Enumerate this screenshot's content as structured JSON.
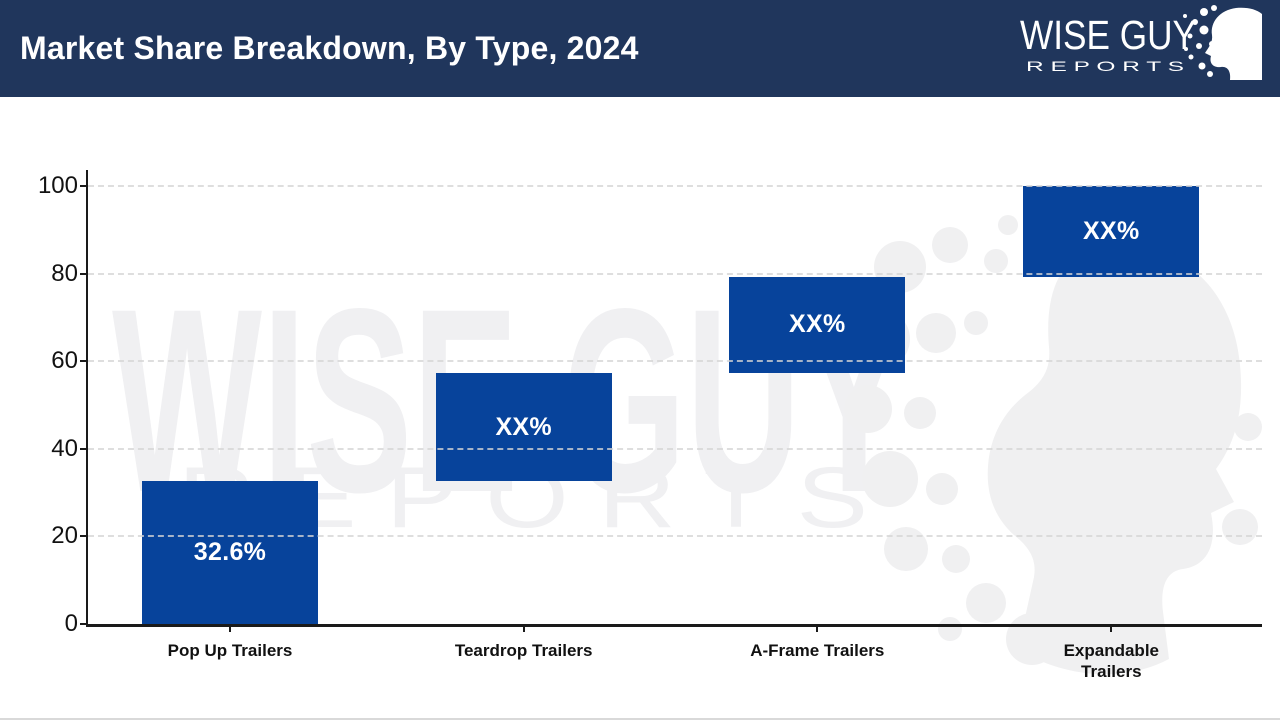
{
  "header": {
    "title": "Market Share Breakdown, By Type, 2024",
    "logo_line1": "WISE GUY",
    "logo_line2": "R E P O R T S"
  },
  "watermark": {
    "line1": "WISE GUY",
    "line2": "R E P O R T S"
  },
  "chart_data": {
    "type": "bar",
    "subtype": "waterfall-stacked-segments",
    "title": "Market Share Breakdown, By Type, 2024",
    "categories": [
      "Pop Up Trailers",
      "Teardrop Trailers",
      "A-Frame Trailers",
      "Expandable\nTrailers"
    ],
    "segments": [
      {
        "category": "Pop Up Trailers",
        "start": 0,
        "end": 32.6,
        "value": 32.6,
        "label": "32.6%"
      },
      {
        "category": "Teardrop Trailers",
        "start": 32.6,
        "end": 57.3,
        "value": 24.7,
        "label": "XX%"
      },
      {
        "category": "A-Frame Trailers",
        "start": 57.3,
        "end": 79.3,
        "value": 22.0,
        "label": "XX%"
      },
      {
        "category": "Expandable Trailers",
        "start": 79.3,
        "end": 100,
        "value": 20.7,
        "label": "XX%"
      }
    ],
    "y_ticks": [
      0,
      20,
      40,
      60,
      80,
      100
    ],
    "ylim": [
      0,
      100
    ],
    "xlabel": "",
    "ylabel": "",
    "grid": "horizontal-dashed",
    "legend": "none",
    "bar_color": "#07439b",
    "bar_label_color": "#ffffff",
    "axis_color": "#1a1a1a"
  },
  "colors": {
    "header_bg": "#20365c",
    "accent_blue": "#07439b",
    "watermark_gray": "#f0f0f2",
    "bottom_rule": "#d9d9d9"
  }
}
